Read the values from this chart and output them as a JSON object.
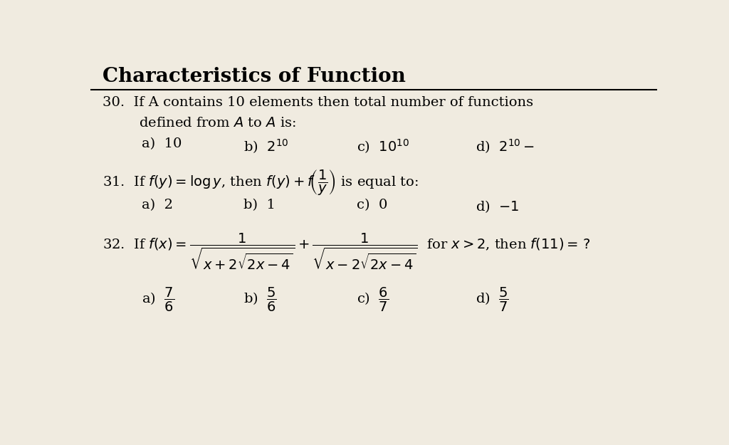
{
  "title": "Characteristics of Function",
  "background_color": "#f0ebe0",
  "title_color": "#000000",
  "title_fontsize": 20,
  "text_color": "#000000",
  "figsize": [
    10.24,
    6.25
  ],
  "dpi": 100
}
